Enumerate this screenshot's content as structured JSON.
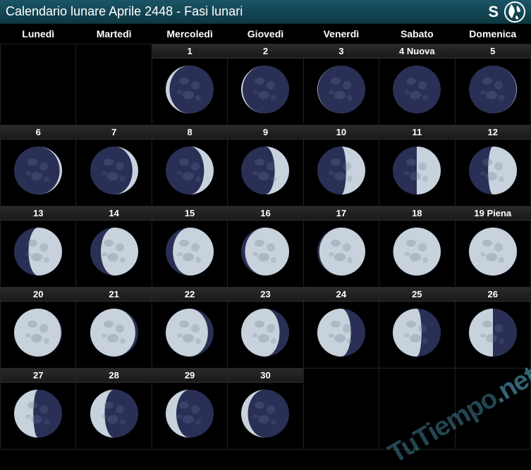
{
  "header": {
    "title": "Calendario lunare Aprile 2448 - Fasi lunari",
    "hemisphere_letter": "S"
  },
  "colors": {
    "header_gradient_top": "#1a5566",
    "header_gradient_bottom": "#0d3842",
    "moon_disc": "#2a2f55",
    "moon_lit": "#c8d2dc",
    "moon_crater": "#404970",
    "moon_lit_crater": "#aab5c2",
    "background": "#000000",
    "cell_border": "#222222",
    "text": "#ffffff",
    "watermark": "rgba(100,200,230,0.35)"
  },
  "weekdays": [
    "Lunedì",
    "Martedì",
    "Mercoledì",
    "Giovedì",
    "Venerdì",
    "Sabato",
    "Domenica"
  ],
  "days": [
    {
      "day": 1,
      "label": "1",
      "illumination": 0.08,
      "lit_side": "left"
    },
    {
      "day": 2,
      "label": "2",
      "illumination": 0.03,
      "lit_side": "left"
    },
    {
      "day": 3,
      "label": "3",
      "illumination": 0.01,
      "lit_side": "left"
    },
    {
      "day": 4,
      "label": "4 Nuova",
      "illumination": 0.0,
      "lit_side": "none"
    },
    {
      "day": 5,
      "label": "5",
      "illumination": 0.01,
      "lit_side": "right"
    },
    {
      "day": 6,
      "label": "6",
      "illumination": 0.05,
      "lit_side": "right"
    },
    {
      "day": 7,
      "label": "7",
      "illumination": 0.12,
      "lit_side": "right"
    },
    {
      "day": 8,
      "label": "8",
      "illumination": 0.2,
      "lit_side": "right"
    },
    {
      "day": 9,
      "label": "9",
      "illumination": 0.3,
      "lit_side": "right"
    },
    {
      "day": 10,
      "label": "10",
      "illumination": 0.4,
      "lit_side": "right"
    },
    {
      "day": 11,
      "label": "11",
      "illumination": 0.5,
      "lit_side": "right"
    },
    {
      "day": 12,
      "label": "12",
      "illumination": 0.6,
      "lit_side": "right"
    },
    {
      "day": 13,
      "label": "13",
      "illumination": 0.7,
      "lit_side": "right"
    },
    {
      "day": 14,
      "label": "14",
      "illumination": 0.78,
      "lit_side": "right"
    },
    {
      "day": 15,
      "label": "15",
      "illumination": 0.85,
      "lit_side": "right"
    },
    {
      "day": 16,
      "label": "16",
      "illumination": 0.92,
      "lit_side": "right"
    },
    {
      "day": 17,
      "label": "17",
      "illumination": 0.96,
      "lit_side": "right"
    },
    {
      "day": 18,
      "label": "18",
      "illumination": 0.99,
      "lit_side": "right"
    },
    {
      "day": 19,
      "label": "19 Piena",
      "illumination": 1.0,
      "lit_side": "full"
    },
    {
      "day": 20,
      "label": "20",
      "illumination": 0.98,
      "lit_side": "left"
    },
    {
      "day": 21,
      "label": "21",
      "illumination": 0.94,
      "lit_side": "left"
    },
    {
      "day": 22,
      "label": "22",
      "illumination": 0.88,
      "lit_side": "left"
    },
    {
      "day": 23,
      "label": "23",
      "illumination": 0.8,
      "lit_side": "left"
    },
    {
      "day": 24,
      "label": "24",
      "illumination": 0.7,
      "lit_side": "left"
    },
    {
      "day": 25,
      "label": "25",
      "illumination": 0.6,
      "lit_side": "left"
    },
    {
      "day": 26,
      "label": "26",
      "illumination": 0.5,
      "lit_side": "left"
    },
    {
      "day": 27,
      "label": "27",
      "illumination": 0.4,
      "lit_side": "left"
    },
    {
      "day": 28,
      "label": "28",
      "illumination": 0.3,
      "lit_side": "left"
    },
    {
      "day": 29,
      "label": "29",
      "illumination": 0.22,
      "lit_side": "left"
    },
    {
      "day": 30,
      "label": "30",
      "illumination": 0.14,
      "lit_side": "left"
    }
  ],
  "first_weekday_index": 2,
  "watermark": {
    "text_a": "TuTiempo",
    "text_b": ".net"
  }
}
